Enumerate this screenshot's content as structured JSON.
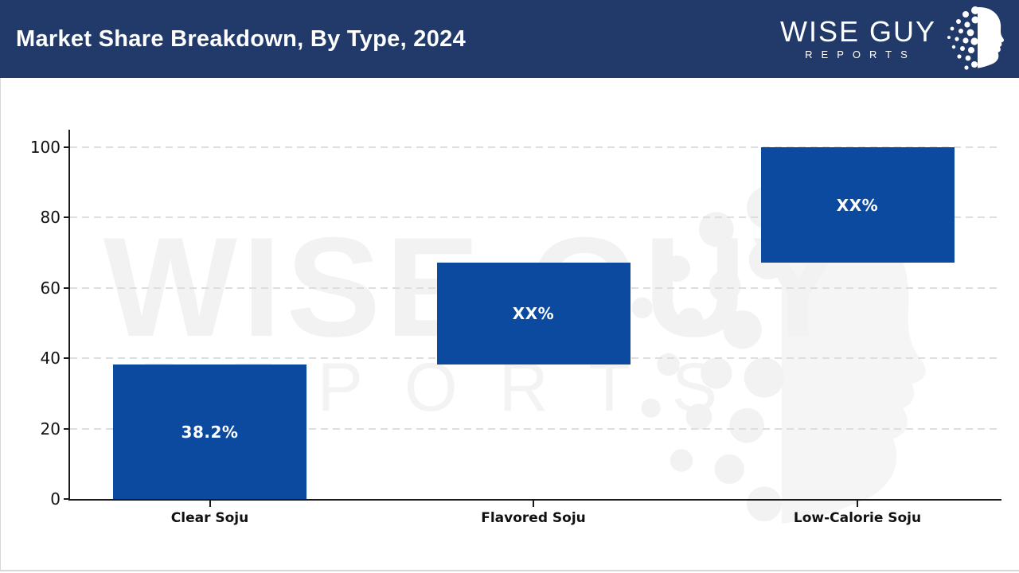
{
  "header": {
    "title": "Market Share Breakdown, By Type, 2024",
    "logo": {
      "line1": "WISE GUY",
      "line2": "REPORTS"
    }
  },
  "watermark": {
    "line1": "WISE GUY",
    "line2": "REPORTS"
  },
  "colors": {
    "header_bg": "#213A69",
    "bar_fill": "#0B4A9F",
    "bar_label_text": "#FFFFFF",
    "axis": "#1A1A1A",
    "gridline": "#DEDEDE",
    "watermark": "#F2F2F2"
  },
  "chart_data": {
    "type": "bar",
    "subtype": "floating-waterfall",
    "title": "Market Share Breakdown, By Type, 2024",
    "categories": [
      "Clear Soju",
      "Flavored Soju",
      "Low-Calorie Soju"
    ],
    "segments": [
      {
        "category": "Clear Soju",
        "start": 0,
        "end": 38.2,
        "label": "38.2%"
      },
      {
        "category": "Flavored Soju",
        "start": 38.2,
        "end": 67.1,
        "label": "XX%"
      },
      {
        "category": "Low-Calorie Soju",
        "start": 67.1,
        "end": 100,
        "label": "XX%"
      }
    ],
    "xlabel": "",
    "ylabel": "",
    "ylim": [
      0,
      100
    ],
    "yticks": [
      0,
      20,
      40,
      60,
      80,
      100
    ],
    "grid": "horizontal-dashed",
    "legend": "none",
    "bar_color": "#0B4A9F"
  }
}
